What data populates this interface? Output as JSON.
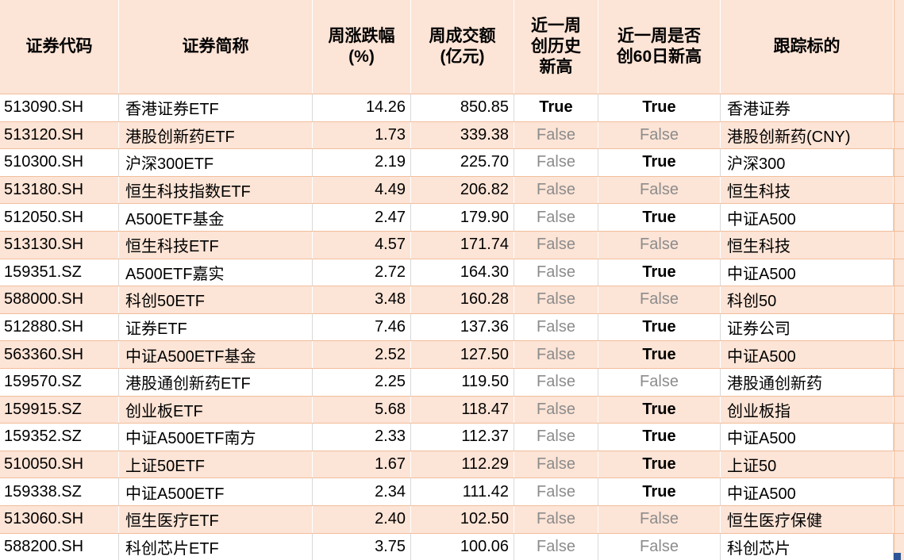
{
  "colors": {
    "row_fill_peach": "#FCE4D6",
    "border_horizontal": "#F2BE9B",
    "border_vertical_on_white": "#D9D9D9",
    "border_vertical_on_peach": "#FFFFFF",
    "true_text": "#000000",
    "false_text": "#8C8C8C",
    "fill_handle": "#2E5496"
  },
  "chart_data": {
    "type": "table",
    "columns": [
      "证券代码",
      "证券简称",
      "周涨跌幅(%)",
      "周成交额(亿元)",
      "近一周创历史新高",
      "近一周是否创60日新高",
      "跟踪标的"
    ],
    "header_lines": [
      [
        "证券代码"
      ],
      [
        "证券简称"
      ],
      [
        "周涨跌幅",
        "(%)"
      ],
      [
        "周成交额",
        "(亿元)"
      ],
      [
        "近一周",
        "创历史",
        "新高"
      ],
      [
        "近一周是否",
        "创60日新高"
      ],
      [
        "跟踪标的"
      ]
    ],
    "rows": [
      [
        "513090.SH",
        "香港证券ETF",
        "14.26",
        "850.85",
        "True",
        "True",
        "香港证券"
      ],
      [
        "513120.SH",
        "港股创新药ETF",
        "1.73",
        "339.38",
        "False",
        "False",
        "港股创新药(CNY)"
      ],
      [
        "510300.SH",
        "沪深300ETF",
        "2.19",
        "225.70",
        "False",
        "True",
        "沪深300"
      ],
      [
        "513180.SH",
        "恒生科技指数ETF",
        "4.49",
        "206.82",
        "False",
        "False",
        "恒生科技"
      ],
      [
        "512050.SH",
        "A500ETF基金",
        "2.47",
        "179.90",
        "False",
        "True",
        "中证A500"
      ],
      [
        "513130.SH",
        "恒生科技ETF",
        "4.57",
        "171.74",
        "False",
        "False",
        "恒生科技"
      ],
      [
        "159351.SZ",
        "A500ETF嘉实",
        "2.72",
        "164.30",
        "False",
        "True",
        "中证A500"
      ],
      [
        "588000.SH",
        "科创50ETF",
        "3.48",
        "160.28",
        "False",
        "False",
        "科创50"
      ],
      [
        "512880.SH",
        "证券ETF",
        "7.46",
        "137.36",
        "False",
        "True",
        "证券公司"
      ],
      [
        "563360.SH",
        "中证A500ETF基金",
        "2.52",
        "127.50",
        "False",
        "True",
        "中证A500"
      ],
      [
        "159570.SZ",
        "港股通创新药ETF",
        "2.25",
        "119.50",
        "False",
        "False",
        "港股通创新药"
      ],
      [
        "159915.SZ",
        "创业板ETF",
        "5.68",
        "118.47",
        "False",
        "True",
        "创业板指"
      ],
      [
        "159352.SZ",
        "中证A500ETF南方",
        "2.33",
        "112.37",
        "False",
        "True",
        "中证A500"
      ],
      [
        "510050.SH",
        "上证50ETF",
        "1.67",
        "112.29",
        "False",
        "True",
        "上证50"
      ],
      [
        "159338.SZ",
        "中证A500ETF",
        "2.34",
        "111.42",
        "False",
        "True",
        "中证A500"
      ],
      [
        "513060.SH",
        "恒生医疗ETF",
        "2.40",
        "102.50",
        "False",
        "False",
        "恒生医疗保健"
      ],
      [
        "588200.SH",
        "科创芯片ETF",
        "3.75",
        "100.06",
        "False",
        "False",
        "科创芯片"
      ]
    ]
  }
}
